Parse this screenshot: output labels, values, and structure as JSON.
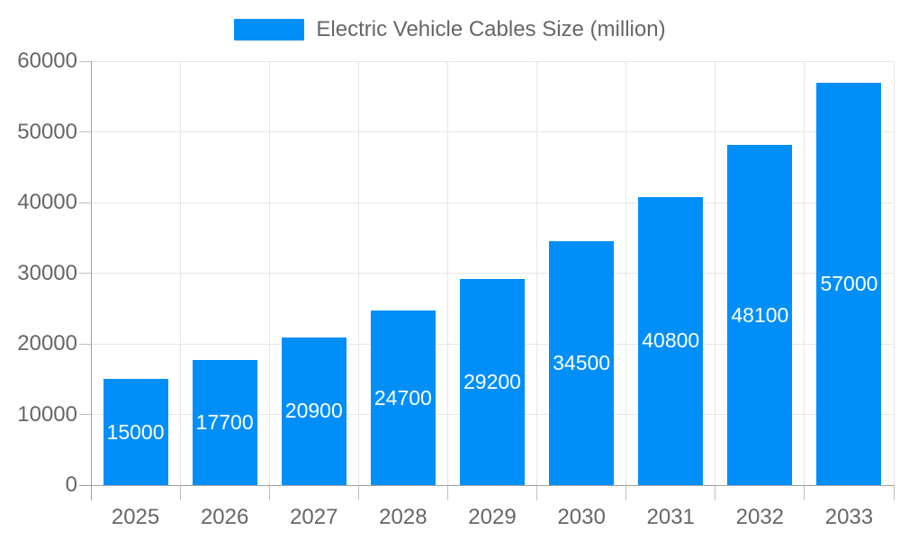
{
  "legend": {
    "label": "Electric Vehicle Cables Size (million)"
  },
  "chart_data": {
    "type": "bar",
    "title": "Electric Vehicle Cables Size (million)",
    "series_name": "Electric Vehicle Cables Size (million)",
    "categories": [
      "2025",
      "2026",
      "2027",
      "2028",
      "2029",
      "2030",
      "2031",
      "2032",
      "2033"
    ],
    "values": [
      15000,
      17700,
      20900,
      24700,
      29200,
      34500,
      40800,
      48100,
      57000
    ],
    "value_labels": [
      "15000",
      "17700",
      "20900",
      "24700",
      "29200",
      "34500",
      "40800",
      "48100",
      "57000"
    ],
    "xlabel": "",
    "ylabel": "",
    "ylim": [
      0,
      60000
    ],
    "ytick_step": 10000,
    "yticks": [
      "0",
      "10000",
      "20000",
      "30000",
      "40000",
      "50000",
      "60000"
    ],
    "grid": true,
    "legend_position": "top-center",
    "bar_color": "#008ff9",
    "bar_label_color": "#ffffff",
    "axis_text_color": "#666666",
    "grid_color": "#e6e6e6",
    "axis_line_color": "#a0a0a0",
    "tick_color": "#c0c0c0",
    "background_color": "#ffffff"
  }
}
